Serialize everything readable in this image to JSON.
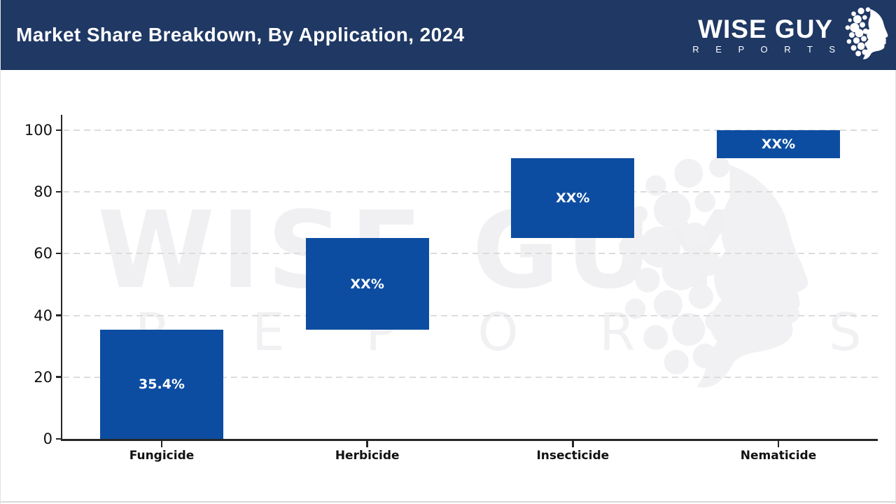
{
  "header": {
    "title": "Market Share Breakdown, By Application, 2024",
    "logo": {
      "line1": "WISE GUY",
      "line2": "R E P O R T S"
    }
  },
  "watermark": {
    "line1": "WISE GUY",
    "line2": "R E P O R T S"
  },
  "colors": {
    "header_bg": "#1f3864",
    "bar": "#0d4da1",
    "axis": "#262626",
    "grid": "#dcdcdc",
    "watermark": "#f0f0f2",
    "bar_label_text": "#ffffff"
  },
  "chart_data": {
    "type": "bar",
    "subtype": "waterfall",
    "title": "Market Share Breakdown, By Application, 2024",
    "categories": [
      "Fungicide",
      "Herbicide",
      "Insecticide",
      "Nematicide"
    ],
    "segments": [
      {
        "category": "Fungicide",
        "start": 0,
        "end": 35.4,
        "label": "35.4%"
      },
      {
        "category": "Herbicide",
        "start": 35.4,
        "end": 65,
        "label": "XX%"
      },
      {
        "category": "Insecticide",
        "start": 65,
        "end": 91,
        "label": "XX%"
      },
      {
        "category": "Nematicide",
        "start": 91,
        "end": 100,
        "label": "XX%"
      }
    ],
    "yticks": [
      0,
      20,
      40,
      60,
      80,
      100
    ],
    "ylim": [
      0,
      105
    ],
    "xlabel": "",
    "ylabel": "",
    "grid": "horizontal-dashed",
    "legend": "none"
  }
}
